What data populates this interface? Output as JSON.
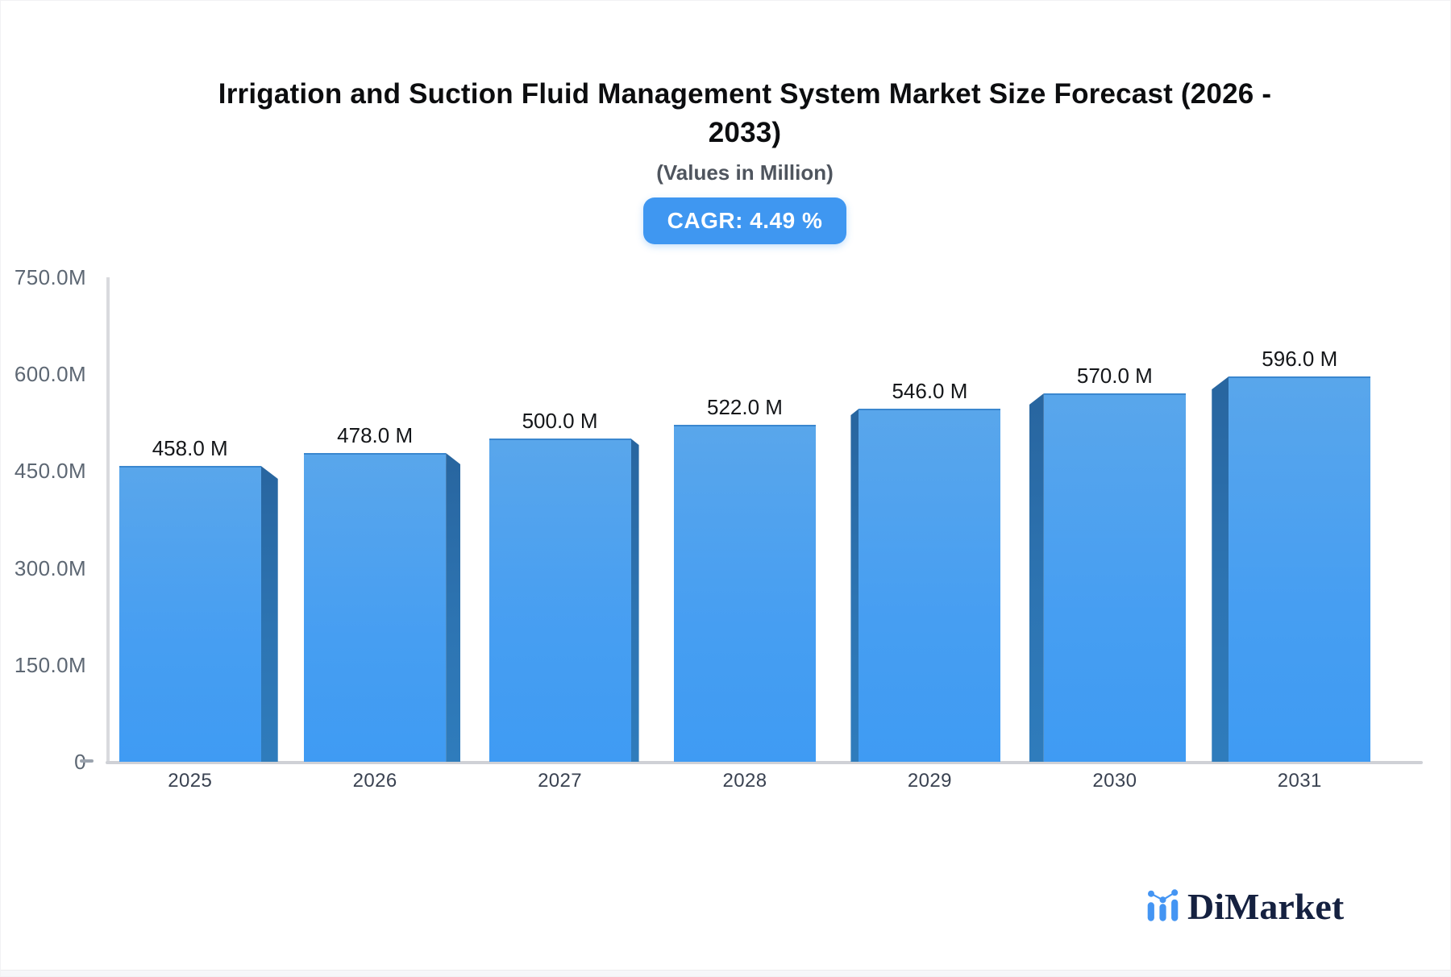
{
  "header": {
    "title_line1": "Irrigation and Suction Fluid Management System Market Size Forecast (2026 -",
    "title_line2": "2033)",
    "subtitle": "(Values in Million)",
    "cagr_badge": "CAGR: 4.49 %"
  },
  "chart_data": {
    "type": "bar",
    "title": "Irrigation and Suction Fluid Management System Market Size Forecast (2026 - 2033)",
    "subtitle": "(Values in Million)",
    "cagr_percent": 4.49,
    "unit": "Million",
    "categories": [
      "2025",
      "2026",
      "2027",
      "2028",
      "2029",
      "2030",
      "2031"
    ],
    "values": [
      458.0,
      478.0,
      500.0,
      522.0,
      546.0,
      570.0,
      596.0
    ],
    "value_labels": [
      "458.0 M",
      "478.0 M",
      "500.0 M",
      "522.0 M",
      "546.0 M",
      "570.0 M",
      "596.0 M"
    ],
    "ylim": [
      0,
      750
    ],
    "yticks": [
      {
        "label": "750.0M",
        "value": 750
      },
      {
        "label": "600.0M",
        "value": 600
      },
      {
        "label": "450.0M",
        "value": 450
      },
      {
        "label": "300.0M",
        "value": 300
      },
      {
        "label": "150.0M",
        "value": 150
      },
      {
        "label": "0",
        "value": 0
      }
    ],
    "grid": false,
    "legend": false,
    "bar_color": "#469ef2",
    "bar_side_color": "#2d74b2",
    "style": "3d-perspective-bars"
  },
  "branding": {
    "logo_text": "DiMarket",
    "logo_icon": "mini-bar-chart-icon",
    "logo_color": "#4495f3",
    "logo_text_color": "#152140"
  }
}
